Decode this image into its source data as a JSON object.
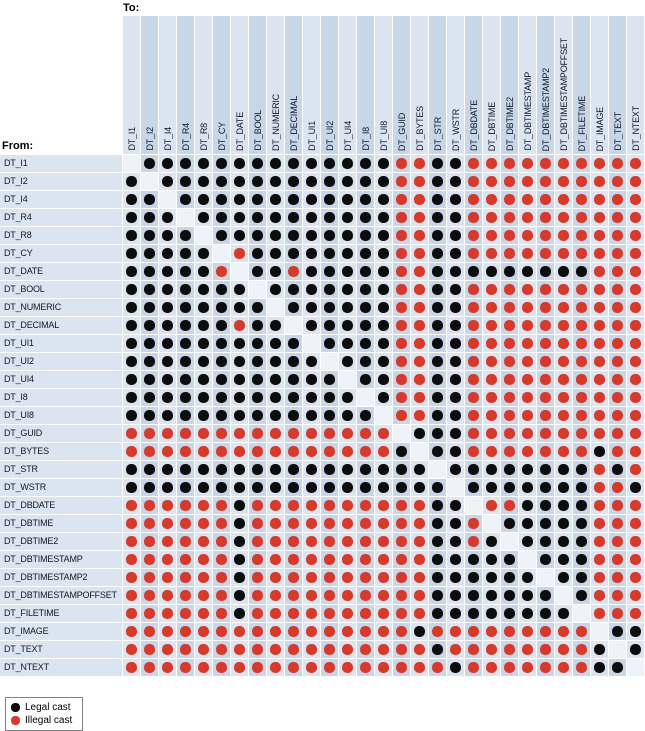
{
  "colors": {
    "legal": "#0d0d0d",
    "illegal": "#d53a2b",
    "col_even": "#dbe5f1",
    "col_odd": "#c8d6e9",
    "diag": "#eef3fa",
    "label_bg": "#dbe5f1"
  },
  "legend": {
    "items": [
      {
        "key": "legal",
        "label": "Legal cast",
        "color": "#0d0d0d"
      },
      {
        "key": "illegal",
        "label": "Illegal cast",
        "color": "#d53a2b"
      }
    ]
  },
  "chart_data": {
    "type": "heatmap",
    "xlabel": "To:",
    "ylabel": "From:",
    "legend": [
      "Legal cast",
      "Illegal cast"
    ],
    "cell_encoding": {
      "B": "legal cast",
      "R": "illegal cast",
      ".": "same type (blank diagonal)"
    },
    "x_categories": [
      "DT_I1",
      "DT_I2",
      "DT_I4",
      "DT_R4",
      "DT_R8",
      "DT_CY",
      "DT_DATE",
      "DT_BOOL",
      "DT_NUMERIC",
      "DT_DECIMAL",
      "DT_UI1",
      "DT_UI2",
      "DT_UI4",
      "DT_I8",
      "DT_UI8",
      "DT_GUID",
      "DT_BYTES",
      "DT_STR",
      "DT_WSTR",
      "DT_DBDATE",
      "DT_DBTIME",
      "DT_DBTIME2",
      "DT_DBTIMESTAMP",
      "DT_DBTIMESTAMP2",
      "DT_DBTIMESTAMPOFFSET",
      "DT_FILETIME",
      "DT_IMAGE",
      "DT_TEXT",
      "DT_NTEXT"
    ],
    "y_categories": [
      "DT_I1",
      "DT_I2",
      "DT_I4",
      "DT_R4",
      "DT_R8",
      "DT_CY",
      "DT_DATE",
      "DT_BOOL",
      "DT_NUMERIC",
      "DT_DECIMAL",
      "DT_UI1",
      "DT_UI2",
      "DT_UI4",
      "DT_I8",
      "DT_UI8",
      "DT_GUID",
      "DT_BYTES",
      "DT_STR",
      "DT_WSTR",
      "DT_DBDATE",
      "DT_DBTIME",
      "DT_DBTIME2",
      "DT_DBTIMESTAMP",
      "DT_DBTIMESTAMP2",
      "DT_DBTIMESTAMPOFFSET",
      "DT_FILETIME",
      "DT_IMAGE",
      "DT_TEXT",
      "DT_NTEXT"
    ],
    "matrix": [
      ".BBBBBBBBBBBBBBRRBBRRRRRRRRRR",
      "B.BBBBBBBBBBBBBRRBBRRRRRRRRRR",
      "BB.BBBBBBBBBBBBRRBBRRRRRRRRRR",
      "BBB.BBBBBBBBBBBRRBBRRRRRRRRRR",
      "BBBB.BBBBBBBBBBRRBBRRRRRRRRRR",
      "BBBBB.RBBBBBBBBRRBBRRRRRRRRRR",
      "BBBBBR.BBRBBBBBRRBBBBBBBBBRRR",
      "BBBBBBB.BBBBBBBRRBBRRRRRRRRRR",
      "BBBBBBBB.BBBBBBRRBBRRRRRRRRRR",
      "BBBBBBRBB.BBBBBRRBBRRRRRRRRRR",
      "BBBBBBBBBB.BBBBRRBBRRRRRRRRRR",
      "BBBBBBBBBBB.BBBRRBBRRRRRRRRRR",
      "BBBBBBBBBBBB.BBRRBBRRRRRRRRRR",
      "BBBBBBBBBBBBB.BRRBBRRRRRRRRRR",
      "BBBBBBBBBBBBBB.RRBBRRRRRRRRRR",
      "RRRRRRRRRRRRRRR.BBBRRRRRRRRRR",
      "RRRRRRRRRRRRRRRB.BBRRRRRRRBRR",
      "BBBBBBBBBBBBBBBBB.BBBBBBBBRBR",
      "BBBBBBBBBBBBBBBBBB.BBBBBBBRRB",
      "RRRRRRBRRRRRRRRRRBB.RRBBBBRRR",
      "RRRRRRBRRRRRRRRRRBBR.BBBBBRRR",
      "RRRRRRBRRRRRRRRRRBBRB.BBBBRRR",
      "RRRRRRBRRRRRRRRRRBBBBB.BBBRRR",
      "RRRRRRBRRRRRRRRRRBBBBBB.BBRRR",
      "RRRRRRBRRRRRRRRRRBBBBBBB.BRRR",
      "RRRRRRBRRRRRRRRRRBBBBBBBB.RRR",
      "RRRRRRRRRRRRRRRRBRRRRRRRRR.BB",
      "RRRRRRRRRRRRRRRRRBRRRRRRRRB.B",
      "RRRRRRRRRRRRRRRRRRBRRRRRRRBB."
    ]
  }
}
